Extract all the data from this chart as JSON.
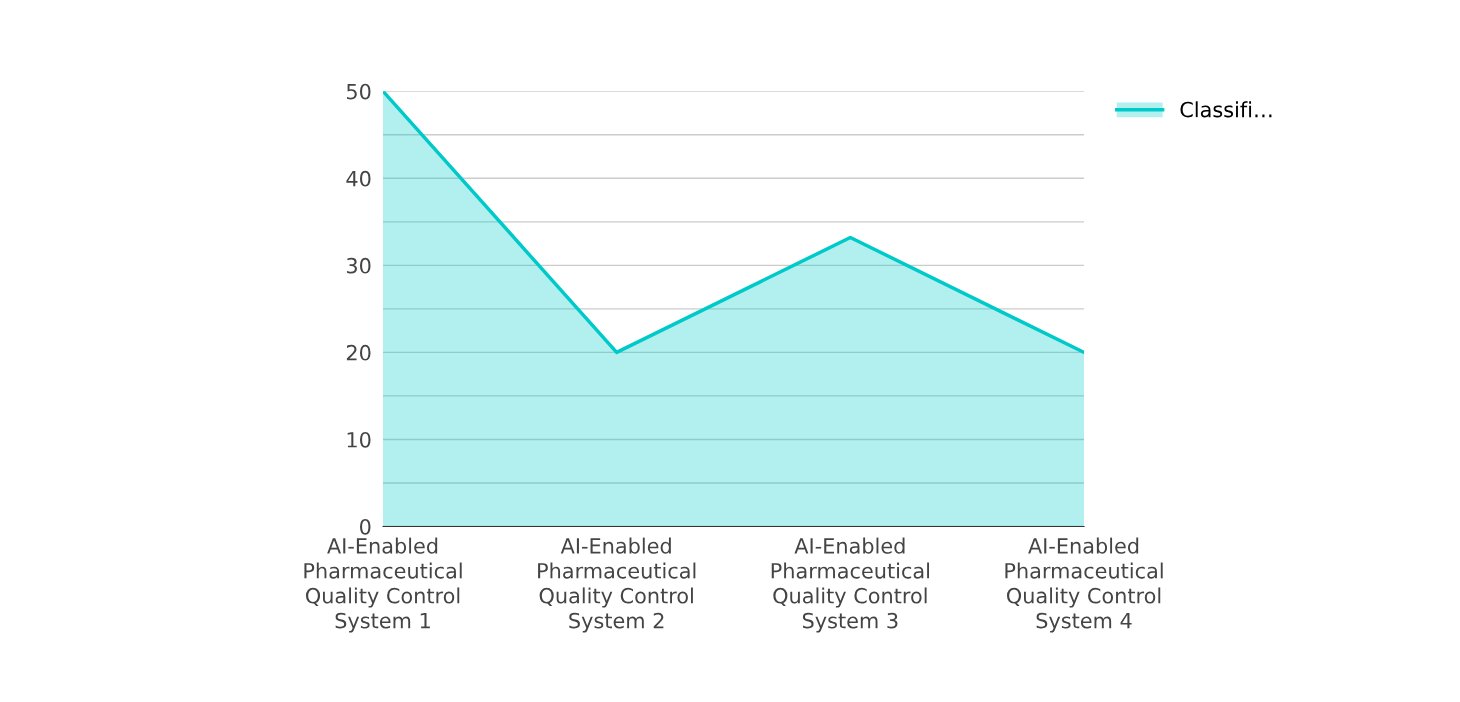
{
  "chart_data": {
    "type": "area",
    "categories": [
      "AI-Enabled Pharmaceutical Quality Control System 1",
      "AI-Enabled Pharmaceutical Quality Control System 2",
      "AI-Enabled Pharmaceutical Quality Control System 3",
      "AI-Enabled Pharmaceutical Quality Control System 4"
    ],
    "series": [
      {
        "name": "Classifi…",
        "color": "#00c9c9",
        "values": [
          50,
          20,
          33.2,
          20
        ]
      }
    ],
    "ylim": [
      0,
      50
    ],
    "yticks": [
      0,
      {
        "value": 5,
        "label": null
      },
      10,
      {
        "value": 15,
        "label": null
      },
      20,
      {
        "value": 25,
        "label": null
      },
      30,
      {
        "value": 35,
        "label": null
      },
      40,
      {
        "value": 45,
        "label": null
      },
      50
    ],
    "grid": "y",
    "legend": "top right",
    "marker": "none"
  }
}
